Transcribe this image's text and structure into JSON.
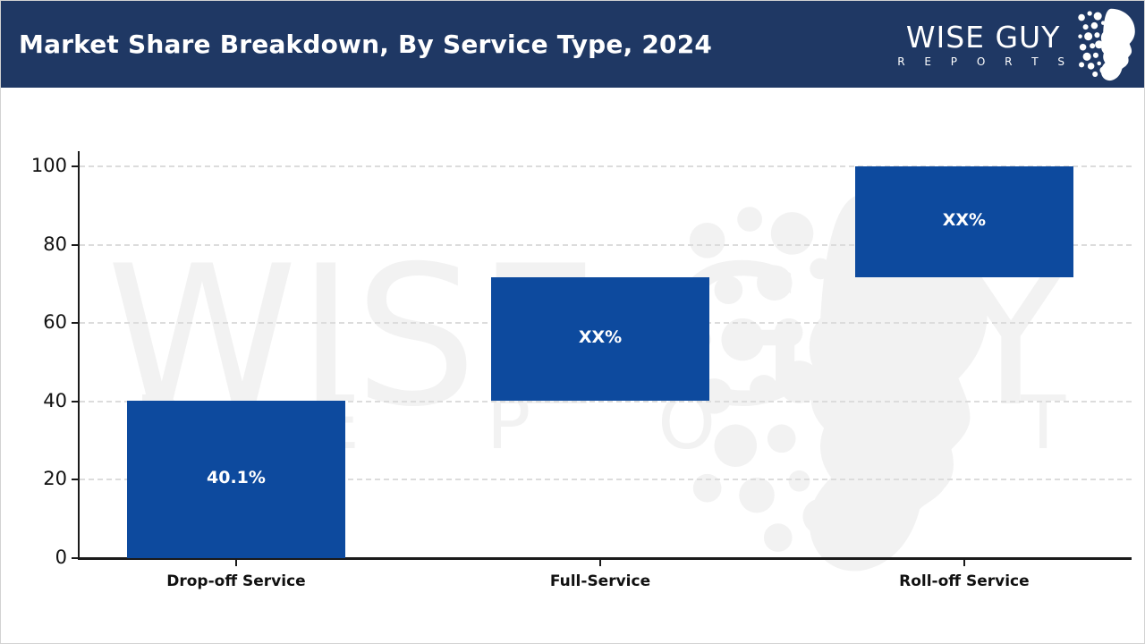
{
  "header": {
    "title": "Market Share Breakdown, By Service Type, 2024",
    "brand": {
      "line1": "WISE GUY",
      "line2": "R E P O R T S"
    }
  },
  "watermark": {
    "line1": "WISE GUY",
    "line2": "R E P O R T S"
  },
  "colors": {
    "header_bg": "#1f3864",
    "bar": "#0d4a9e",
    "grid": "#dcdcdc",
    "axis": "#1a1a1a",
    "bar_label": "#ffffff",
    "watermark": "#f2f2f2"
  },
  "chart_data": {
    "type": "bar",
    "subtype": "floating-segment-breakdown",
    "title": "Market Share Breakdown, By Service Type, 2024",
    "categories": [
      "Drop-off Service",
      "Full-Service",
      "Roll-off Service"
    ],
    "segments": [
      {
        "category": "Drop-off Service",
        "start": 0,
        "end": 40.1,
        "label": "40.1%"
      },
      {
        "category": "Full-Service",
        "start": 40.1,
        "end": 71.6,
        "label": "XX%"
      },
      {
        "category": "Roll-off Service",
        "start": 71.6,
        "end": 100,
        "label": "XX%"
      }
    ],
    "xlabel": "",
    "ylabel": "",
    "ylim": [
      0,
      100
    ],
    "y_ticks": [
      0,
      20,
      40,
      60,
      80,
      100
    ],
    "grid": "dashed-horizontal",
    "legend": "none"
  }
}
